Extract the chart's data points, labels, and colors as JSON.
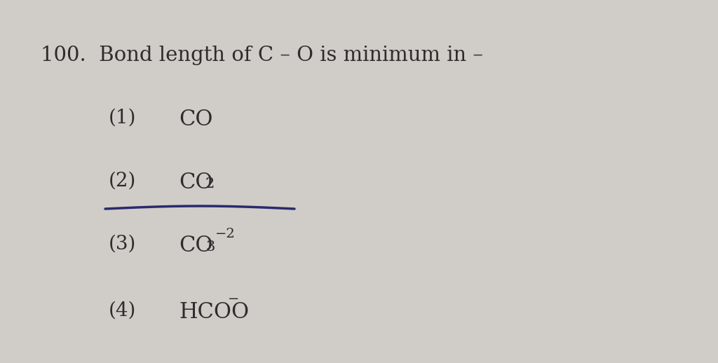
{
  "background_color": "#d0ccc8",
  "text_color": "#2d2d2d",
  "question_number": "100.",
  "question_text": "Bond length of C – O is minimum in –",
  "underline_color": "#2a2a6e",
  "font_size_question": 21,
  "font_size_options": 22,
  "font_size_number": 20,
  "font_size_sub": 15,
  "font_size_sup": 14,
  "opt1_label": "(1)",
  "opt1_main": "CO",
  "opt2_label": "(2)",
  "opt2_main": "CO",
  "opt2_sub": "2",
  "opt3_label": "(3)",
  "opt3_main": "CO",
  "opt3_sub": "3",
  "opt3_sup": "−2",
  "opt4_label": "(4)",
  "opt4_main": "HCOO",
  "opt4_sup": "−"
}
